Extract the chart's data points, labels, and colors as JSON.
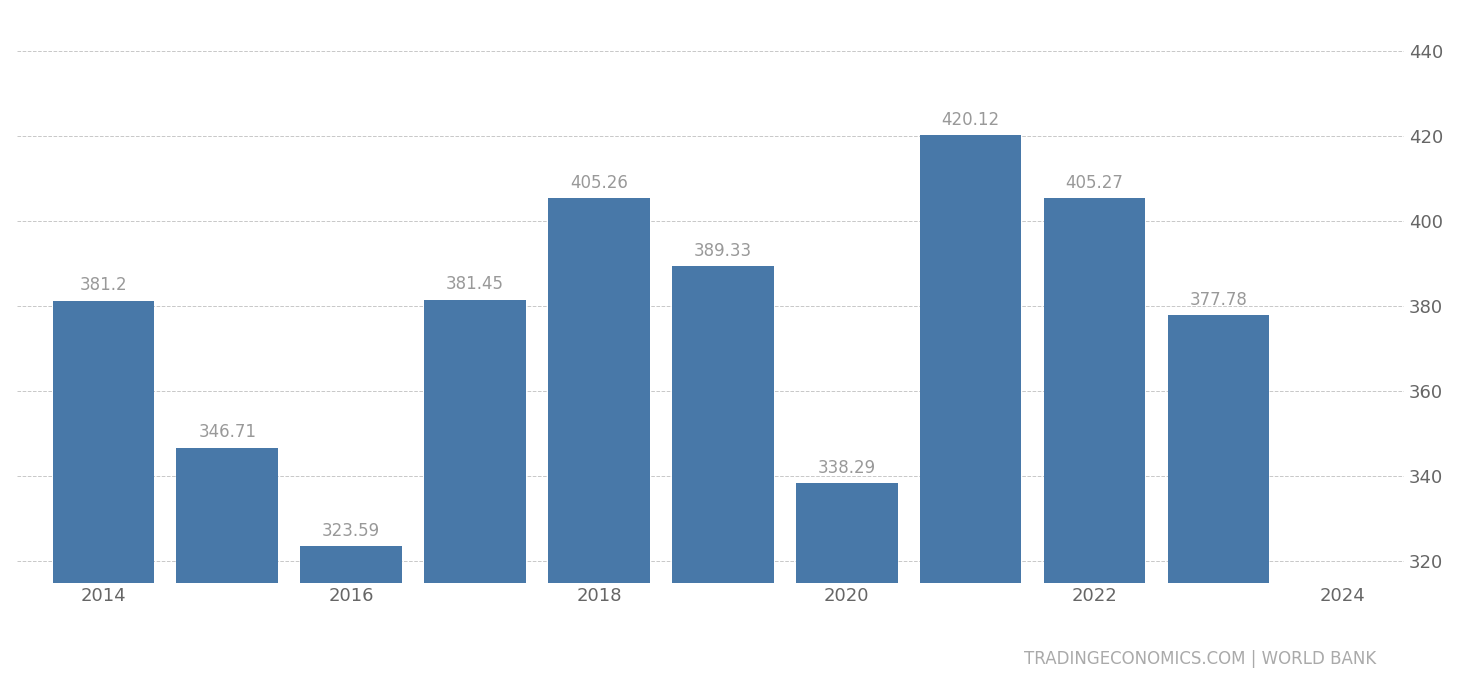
{
  "years": [
    2014,
    2015,
    2016,
    2017,
    2018,
    2019,
    2020,
    2021,
    2022,
    2023
  ],
  "values": [
    381.2,
    346.71,
    323.59,
    381.45,
    405.26,
    389.33,
    338.29,
    420.12,
    405.27,
    377.78
  ],
  "bar_color": "#4878a8",
  "background_color": "#ffffff",
  "grid_color": "#c8c8c8",
  "label_color": "#666666",
  "ylim": [
    315,
    448
  ],
  "yticks": [
    320,
    340,
    360,
    380,
    400,
    420,
    440
  ],
  "xtick_labels": [
    "2014",
    "2016",
    "2018",
    "2020",
    "2022",
    "2024"
  ],
  "xtick_positions": [
    2014,
    2016,
    2018,
    2020,
    2022,
    2024
  ],
  "watermark": "TRADINGECONOMICS.COM | WORLD BANK",
  "bar_width": 0.82,
  "value_label_color": "#999999",
  "value_label_fontsize": 12,
  "tick_fontsize": 13,
  "watermark_fontsize": 12,
  "xlim_left": 2013.3,
  "xlim_right": 2024.5
}
